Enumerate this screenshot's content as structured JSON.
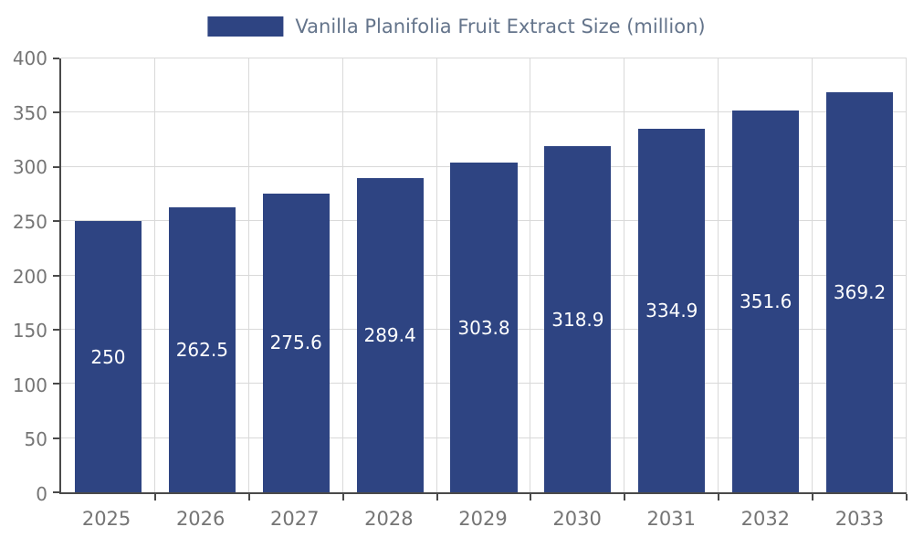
{
  "legend": {
    "label": "Vanilla Planifolia Fruit Extract Size (million)"
  },
  "chart_data": {
    "type": "bar",
    "title": "Vanilla Planifolia Fruit Extract Size (million)",
    "categories": [
      "2025",
      "2026",
      "2027",
      "2028",
      "2029",
      "2030",
      "2031",
      "2032",
      "2033"
    ],
    "values": [
      250,
      262.5,
      275.6,
      289.4,
      303.8,
      318.9,
      334.9,
      351.6,
      369.2
    ],
    "value_labels": [
      "250",
      "262.5",
      "275.6",
      "289.4",
      "303.8",
      "318.9",
      "334.9",
      "351.6",
      "369.2"
    ],
    "xlabel": "",
    "ylabel": "",
    "ylim": [
      0,
      400
    ],
    "yticks": [
      0,
      50,
      100,
      150,
      200,
      250,
      300,
      350,
      400
    ],
    "grid": true,
    "legend_position": "top",
    "colors": {
      "bar": "#2e4482",
      "bar_label": "#ffffff",
      "title_text": "#64748b",
      "axis_text": "#757575",
      "axis_line": "#4a4a4a",
      "grid": "#d9d9d9"
    }
  }
}
